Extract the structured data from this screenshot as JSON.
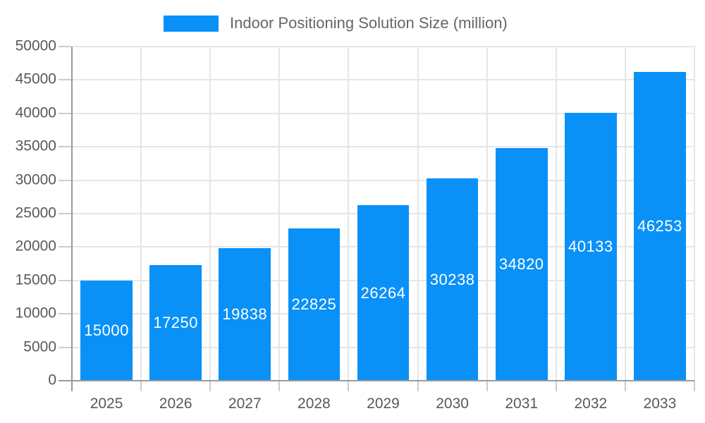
{
  "chart_data": {
    "type": "bar",
    "title": "Indoor Positioning Solution Size (million)",
    "legend": {
      "label": "Indoor Positioning Solution Size (million)",
      "position": "top"
    },
    "categories": [
      "2025",
      "2026",
      "2027",
      "2028",
      "2029",
      "2030",
      "2031",
      "2032",
      "2033"
    ],
    "values": [
      15000,
      17250,
      19838,
      22825,
      26264,
      30238,
      34820,
      40133,
      46253
    ],
    "value_labels": [
      "15000",
      "17250",
      "19838",
      "22825",
      "26264",
      "30238",
      "34820",
      "40133",
      "46253"
    ],
    "value_label_position": "inside-center",
    "xlabel": "",
    "ylabel": "",
    "ylim": [
      0,
      50000
    ],
    "ytick_step": 5000,
    "ytick_labels": [
      "0",
      "5000",
      "10000",
      "15000",
      "20000",
      "25000",
      "30000",
      "35000",
      "40000",
      "45000",
      "50000"
    ],
    "grid": true,
    "colors": {
      "bar": "#0a91f8",
      "bar_label": "#ffffff",
      "gridline": "#e6e6e6",
      "axis_line": "#999999",
      "tick": "#cccccc",
      "axis_label": "#595959",
      "legend_text": "#666666",
      "background": "#ffffff"
    }
  }
}
